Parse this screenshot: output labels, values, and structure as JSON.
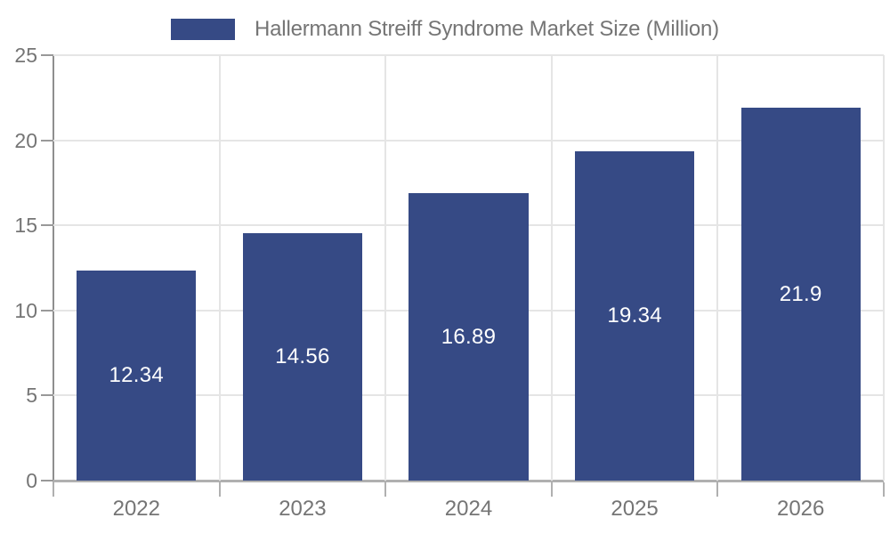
{
  "chart_data": {
    "type": "bar",
    "title": "Hallermann Streiff Syndrome Market Size (Million)",
    "categories": [
      "2022",
      "2023",
      "2024",
      "2025",
      "2026"
    ],
    "values": [
      12.34,
      14.56,
      16.89,
      19.34,
      21.9
    ],
    "value_labels": [
      "12.34",
      "14.56",
      "16.89",
      "19.34",
      "21.9"
    ],
    "xlabel": "",
    "ylabel": "",
    "ylim": [
      0,
      25
    ],
    "yticks": [
      0,
      5,
      10,
      15,
      20,
      25
    ],
    "grid": true,
    "legend_position": "top",
    "bar_width_ratio": 0.72
  },
  "legend": {
    "label": "Hallermann Streiff Syndrome Market Size (Million)"
  },
  "colors": {
    "bar": "#364A85",
    "value_label": "#ffffff",
    "axis_label": "#757575",
    "legend_text": "#757575",
    "axis_line_y": "#8f8f8f",
    "axis_line_x": "#b0b0b0",
    "tick": "#999999",
    "gridline": "#e5e5e5",
    "background": "#ffffff"
  }
}
